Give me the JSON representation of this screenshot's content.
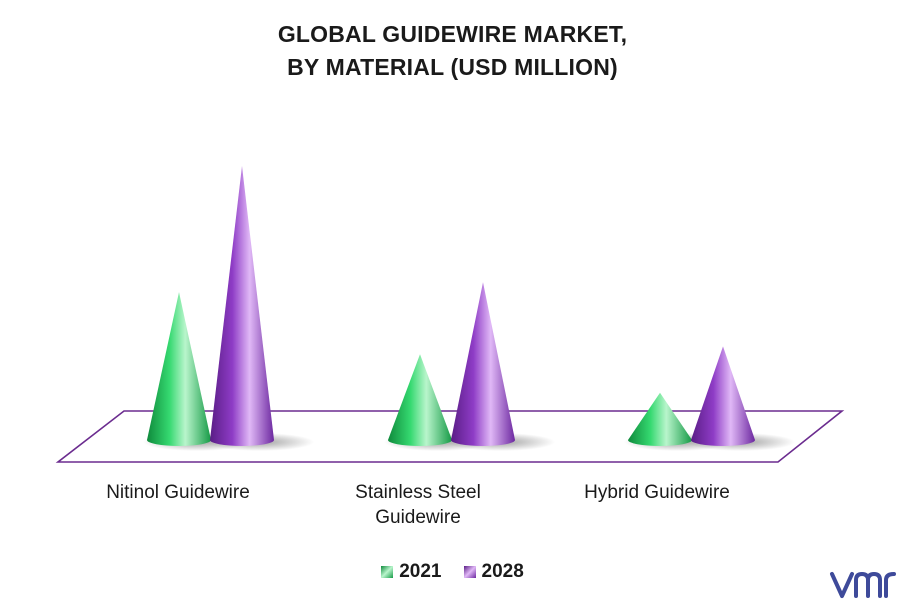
{
  "chart_data": {
    "type": "bar",
    "title_lines": [
      "GLOBAL GUIDEWIRE MARKET,",
      "BY MATERIAL (USD MILLION)"
    ],
    "categories": [
      "Nitinol Guidewire",
      "Stainless Steel Guidewire",
      "Hybrid Guidewire"
    ],
    "category_label_lines": [
      [
        "Nitinol Guidewire"
      ],
      [
        "Stainless Steel",
        "Guidewire"
      ],
      [
        "Hybrid Guidewire"
      ]
    ],
    "series": [
      {
        "name": "2021",
        "values": [
          150,
          87,
          48
        ]
      },
      {
        "name": "2028",
        "values": [
          278,
          160,
          95
        ]
      }
    ],
    "ylim": [
      0,
      300
    ],
    "legend_position": "bottom",
    "grid": false,
    "mark_shape": "cone"
  },
  "colors": {
    "2021": "#2fd36b",
    "2028": "#8e3cc6",
    "floor_outline": "#6b2c8f",
    "logo": "#3e4a9a"
  },
  "logo": {
    "name": "vmr-logo-icon"
  }
}
